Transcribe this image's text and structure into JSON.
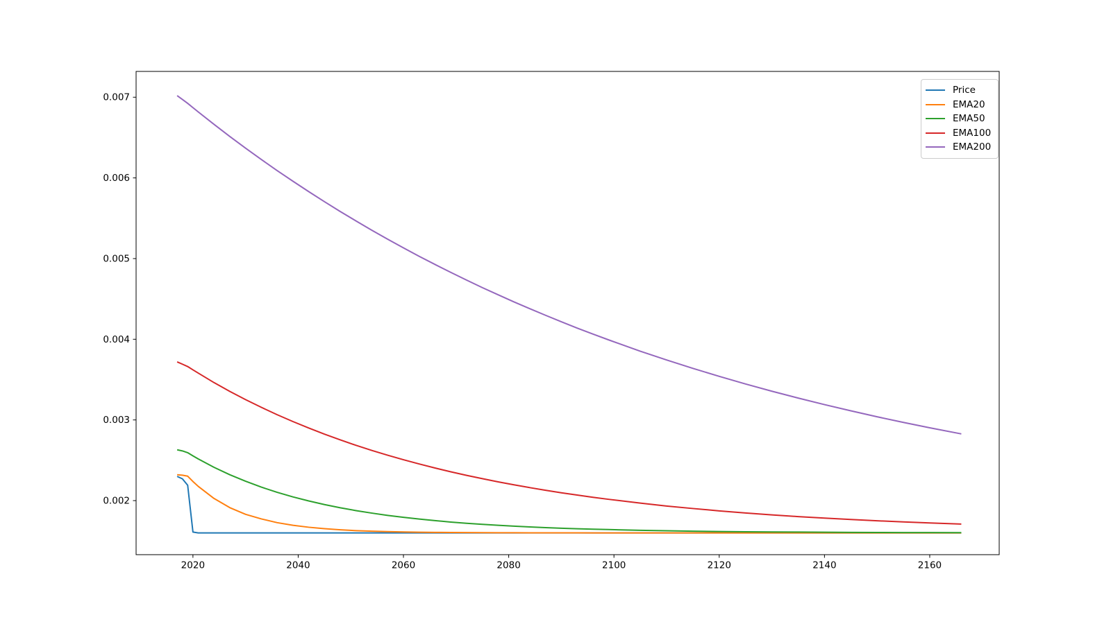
{
  "figure": {
    "background": "#ffffff",
    "plot_background": "#ffffff",
    "spine_color": "#000000",
    "tick_color": "#000000",
    "tick_label_color": "#000000"
  },
  "legend": {
    "background": "#ffffff",
    "border_color": "#cccccc",
    "location": "upper right"
  },
  "chart_data": {
    "type": "line",
    "title": "",
    "xlabel": "",
    "ylabel": "",
    "grid": false,
    "legend_position": "upper right",
    "xlim": [
      2009.2,
      2173.2
    ],
    "ylim": [
      0.00133,
      0.00732
    ],
    "xticks": [
      2020,
      2040,
      2060,
      2080,
      2100,
      2120,
      2140,
      2160
    ],
    "xtick_labels": [
      "2020",
      "2040",
      "2060",
      "2080",
      "2100",
      "2120",
      "2140",
      "2160"
    ],
    "yticks": [
      0.002,
      0.003,
      0.004,
      0.005,
      0.006,
      0.007
    ],
    "ytick_labels": [
      "0.002",
      "0.003",
      "0.004",
      "0.005",
      "0.006",
      "0.007"
    ],
    "x": [
      2017,
      2018,
      2019,
      2020,
      2021,
      2024,
      2027,
      2030,
      2033,
      2036,
      2039,
      2042,
      2045,
      2048,
      2051,
      2054,
      2057,
      2060,
      2063,
      2066,
      2069,
      2072,
      2075,
      2078,
      2081,
      2084,
      2087,
      2090,
      2093,
      2096,
      2099,
      2105,
      2110,
      2115,
      2120,
      2125,
      2130,
      2135,
      2140,
      2145,
      2150,
      2155,
      2160,
      2166
    ],
    "series": [
      {
        "name": "Price",
        "color": "#1f77b4",
        "values": [
          0.0023,
          0.00227,
          0.00219,
          0.00161,
          0.0016,
          0.0016,
          0.0016,
          0.0016,
          0.0016,
          0.0016,
          0.0016,
          0.0016,
          0.0016,
          0.0016,
          0.0016,
          0.0016,
          0.0016,
          0.0016,
          0.0016,
          0.0016,
          0.0016,
          0.0016,
          0.0016,
          0.0016,
          0.0016,
          0.0016,
          0.0016,
          0.0016,
          0.0016,
          0.0016,
          0.0016,
          0.0016,
          0.0016,
          0.0016,
          0.0016,
          0.0016,
          0.0016,
          0.0016,
          0.0016,
          0.0016,
          0.0016,
          0.0016,
          0.0016,
          0.0016
        ]
      },
      {
        "name": "EMA20",
        "color": "#ff7f0e",
        "values": [
          0.00232,
          0.002315,
          0.002303,
          0.002237,
          0.002177,
          0.002027,
          0.001913,
          0.00183,
          0.001773,
          0.001727,
          0.001694,
          0.00167,
          0.001652,
          0.001638,
          0.001628,
          0.001621,
          0.001616,
          0.001612,
          0.001608,
          0.001606,
          0.001605,
          0.001604,
          0.001603,
          0.001602,
          0.001602,
          0.001601,
          0.001601,
          0.001601,
          0.001601,
          0.0016,
          0.0016,
          0.0016,
          0.0016,
          0.0016,
          0.0016,
          0.0016,
          0.0016,
          0.0016,
          0.0016,
          0.0016,
          0.0016,
          0.0016,
          0.0016,
          0.0016
        ]
      },
      {
        "name": "EMA50",
        "color": "#2ca02c",
        "values": [
          0.00263,
          0.002616,
          0.002594,
          0.002555,
          0.002517,
          0.002413,
          0.002321,
          0.00224,
          0.002167,
          0.002103,
          0.002046,
          0.001996,
          0.001951,
          0.001911,
          0.001876,
          0.001845,
          0.001817,
          0.001793,
          0.001771,
          0.001752,
          0.001734,
          0.001719,
          0.001706,
          0.001694,
          0.001683,
          0.001674,
          0.001665,
          0.001658,
          0.001651,
          0.001646,
          0.001641,
          0.001632,
          0.001626,
          0.001621,
          0.001617,
          0.001614,
          0.001612,
          0.00161,
          0.001608,
          0.001606,
          0.001605,
          0.001604,
          0.001604,
          0.001603
        ]
      },
      {
        "name": "EMA100",
        "color": "#d62728",
        "values": [
          0.00372,
          0.003691,
          0.003662,
          0.003621,
          0.003581,
          0.003463,
          0.003354,
          0.003252,
          0.003156,
          0.003065,
          0.00298,
          0.0029,
          0.002824,
          0.002753,
          0.002685,
          0.002622,
          0.002563,
          0.002507,
          0.002454,
          0.002404,
          0.002357,
          0.002313,
          0.002272,
          0.002232,
          0.002196,
          0.002161,
          0.002128,
          0.002097,
          0.002069,
          0.002041,
          0.002016,
          0.001969,
          0.001933,
          0.001902,
          0.001873,
          0.001847,
          0.001823,
          0.001802,
          0.001783,
          0.001766,
          0.00175,
          0.001736,
          0.001723,
          0.001709
        ]
      },
      {
        "name": "EMA200",
        "color": "#9467bd",
        "values": [
          0.00702,
          0.006973,
          0.006924,
          0.006871,
          0.006818,
          0.006664,
          0.006514,
          0.006369,
          0.006228,
          0.006091,
          0.005959,
          0.00583,
          0.005705,
          0.005583,
          0.005466,
          0.005351,
          0.00524,
          0.005133,
          0.005028,
          0.004927,
          0.004829,
          0.004733,
          0.00464,
          0.004551,
          0.004463,
          0.004379,
          0.004297,
          0.004217,
          0.004139,
          0.004064,
          0.003992,
          0.003852,
          0.003743,
          0.003639,
          0.00354,
          0.003446,
          0.003356,
          0.003271,
          0.00319,
          0.003113,
          0.003039,
          0.002969,
          0.002903,
          0.002827
        ]
      }
    ]
  }
}
